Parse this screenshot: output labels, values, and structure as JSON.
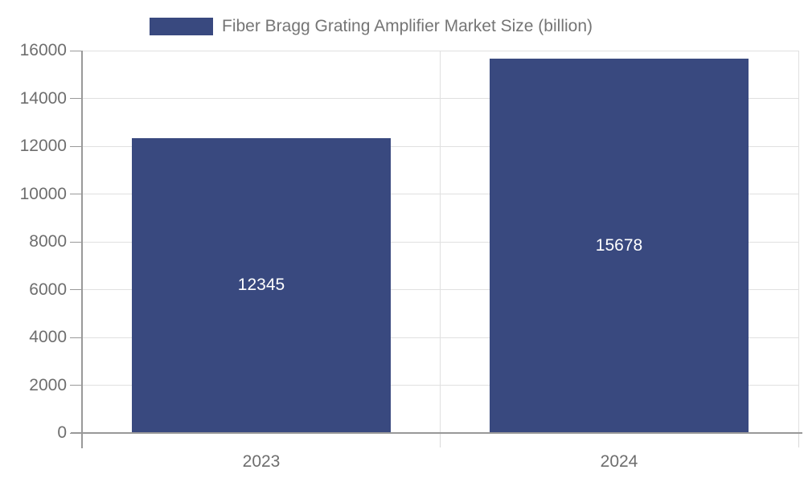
{
  "legend": {
    "label": "Fiber Bragg Grating Amplifier Market Size (billion)"
  },
  "chart_data": {
    "type": "bar",
    "title": "Fiber Bragg Grating Amplifier Market Size (billion)",
    "categories": [
      "2023",
      "2024"
    ],
    "series": [
      {
        "name": "Fiber Bragg Grating Amplifier Market Size (billion)",
        "values": [
          12345,
          15678
        ]
      }
    ],
    "data_labels": [
      "12345",
      "15678"
    ],
    "xlabel": "",
    "ylabel": "",
    "ylim": [
      0,
      16000
    ],
    "yticks": [
      0,
      2000,
      4000,
      6000,
      8000,
      10000,
      12000,
      14000,
      16000
    ],
    "grid": "horizontal",
    "legend_position": "top-center",
    "colors": {
      "bar": "#39497f",
      "grid": "#e0e0e0",
      "axis": "#999999",
      "minor_tick": "#d9d9d9",
      "tick_text": "#6e6e6e",
      "title_text": "#757575",
      "bar_label": "#ffffff",
      "background": "#ffffff"
    }
  }
}
